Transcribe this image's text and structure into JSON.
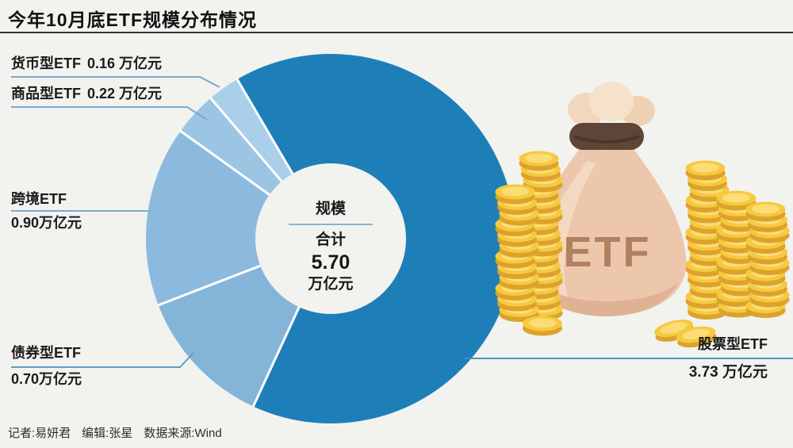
{
  "title": "今年10月底ETF规模分布情况",
  "center": {
    "scale": "规模",
    "total": "合计",
    "value": "5.70",
    "unit": "万亿元"
  },
  "labels": {
    "currency": {
      "name": "货币型ETF",
      "amount": "0.16 万亿元"
    },
    "commodity": {
      "name": "商品型ETF",
      "amount": "0.22 万亿元"
    },
    "crossborder": {
      "name": "跨境ETF",
      "amount": "0.90万亿元"
    },
    "bond": {
      "name": "债券型ETF",
      "amount": "0.70万亿元"
    },
    "stock": {
      "name": "股票型ETF",
      "amount": "3.73 万亿元"
    }
  },
  "illustration": {
    "bag_label": "ETF"
  },
  "credits": {
    "reporter": "记者:易妍君",
    "editor": "编辑:张星",
    "source": "数据来源:Wind"
  },
  "chart_data": {
    "type": "pie",
    "title": "今年10月底ETF规模分布情况",
    "unit": "万亿元",
    "center_label": "规模合计 5.70 万亿元",
    "total": "5.70",
    "start_angle_deg": -30.4,
    "direction": "clockwise",
    "donut": true,
    "separator_color": "#ffffff",
    "legend_position": "callout-labels",
    "slices": [
      {
        "id": "stock",
        "label": "股票型ETF",
        "value": 3.73,
        "color": "#1e7fb8"
      },
      {
        "id": "bond",
        "label": "债券型ETF",
        "value": 0.7,
        "color": "#85b4d9"
      },
      {
        "id": "crossborder",
        "label": "跨境ETF",
        "value": 0.9,
        "color": "#8bbade"
      },
      {
        "id": "commodity",
        "label": "商品型ETF",
        "value": 0.22,
        "color": "#9cc5e3"
      },
      {
        "id": "currency",
        "label": "货币型ETF",
        "value": 0.16,
        "color": "#a9cfe9"
      }
    ]
  }
}
